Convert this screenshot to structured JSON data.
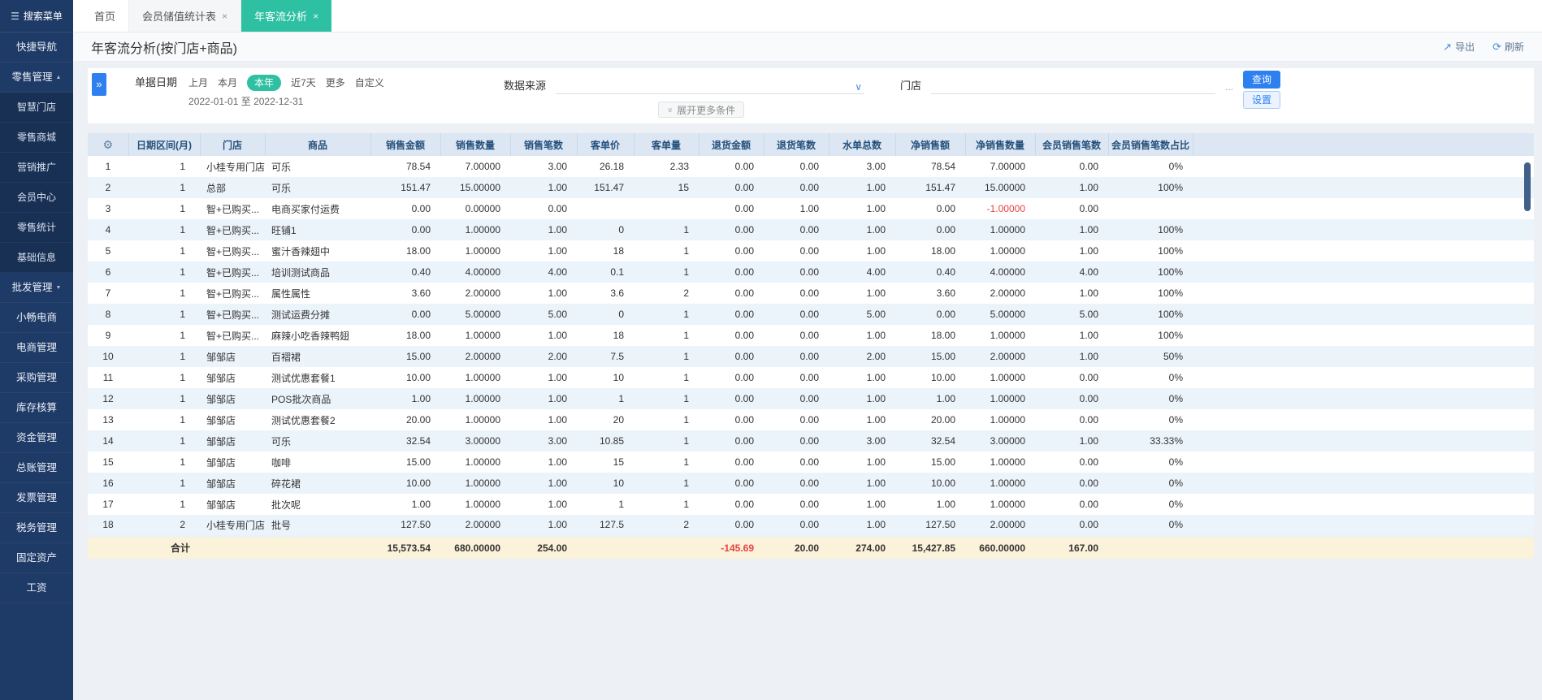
{
  "icons": {
    "menu": "☰",
    "collapse_panel": "»",
    "caret_up": "▲",
    "caret_down": "▼",
    "export": "↗",
    "refresh": "⟳",
    "dropdown_chevron": "∨",
    "expand_more": "»",
    "gear": "⚙",
    "close": "×",
    "ellipsis": "..."
  },
  "colors": {
    "accent_teal": "#2ec0a2",
    "accent_blue": "#2e80f0",
    "negative_red": "#e64242",
    "sidebar_navy": "#1e3a66",
    "table_header_blue": "#dce7f3",
    "row_stripe_blue": "#ebf3fb",
    "total_row_yellow": "#fbf2da"
  },
  "sidebar": {
    "search_label": "搜索菜单",
    "items": [
      {
        "label": "快捷导航",
        "type": "item"
      },
      {
        "label": "零售管理",
        "type": "group-open"
      },
      {
        "label": "智慧门店",
        "type": "sub"
      },
      {
        "label": "零售商城",
        "type": "sub"
      },
      {
        "label": "营销推广",
        "type": "sub"
      },
      {
        "label": "会员中心",
        "type": "sub"
      },
      {
        "label": "零售统计",
        "type": "sub"
      },
      {
        "label": "基础信息",
        "type": "sub"
      },
      {
        "label": "批发管理",
        "type": "group-closed"
      },
      {
        "label": "小畅电商",
        "type": "item"
      },
      {
        "label": "电商管理",
        "type": "item"
      },
      {
        "label": "采购管理",
        "type": "item"
      },
      {
        "label": "库存核算",
        "type": "item"
      },
      {
        "label": "资金管理",
        "type": "item"
      },
      {
        "label": "总账管理",
        "type": "item"
      },
      {
        "label": "发票管理",
        "type": "item"
      },
      {
        "label": "税务管理",
        "type": "item"
      },
      {
        "label": "固定资产",
        "type": "item"
      },
      {
        "label": "工资",
        "type": "item"
      }
    ]
  },
  "tabs": [
    {
      "label": "首页",
      "active": false,
      "closable": false
    },
    {
      "label": "会员储值统计表",
      "active": false,
      "closable": true
    },
    {
      "label": "年客流分析",
      "active": true,
      "closable": true
    }
  ],
  "page": {
    "title": "年客流分析(按门店+商品)",
    "export_label": "导出",
    "refresh_label": "刷新"
  },
  "filters": {
    "date_label": "单据日期",
    "date_buttons": [
      {
        "label": "上月",
        "active": false
      },
      {
        "label": "本月",
        "active": false
      },
      {
        "label": "本年",
        "active": true
      },
      {
        "label": "近7天",
        "active": false
      },
      {
        "label": "更多",
        "active": false
      },
      {
        "label": "自定义",
        "active": false
      }
    ],
    "date_range": "2022-01-01 至 2022-12-31",
    "source_label": "数据来源",
    "store_label": "门店",
    "query_label": "查询",
    "settings_label": "设置",
    "expand_label": "展开更多条件"
  },
  "table": {
    "columns": [
      "日期区间(月)",
      "门店",
      "商品",
      "销售金额",
      "销售数量",
      "销售笔数",
      "客单价",
      "客单量",
      "退货金额",
      "退货笔数",
      "水单总数",
      "净销售额",
      "净销售数量",
      "会员销售笔数",
      "会员销售笔数占比"
    ],
    "rows": [
      {
        "num": "1",
        "period": "1",
        "store": "小桂专用门店",
        "product": "可乐",
        "values": [
          "78.54",
          "7.00000",
          "3.00",
          "26.18",
          "2.33",
          "0.00",
          "0.00",
          "3.00",
          "78.54",
          "7.00000",
          "0.00",
          "0%"
        ]
      },
      {
        "num": "2",
        "period": "1",
        "store": "总部",
        "product": "可乐",
        "values": [
          "151.47",
          "15.00000",
          "1.00",
          "151.47",
          "15",
          "0.00",
          "0.00",
          "1.00",
          "151.47",
          "15.00000",
          "1.00",
          "100%"
        ]
      },
      {
        "num": "3",
        "period": "1",
        "store": "智+已购买...",
        "product": "电商买家付运费",
        "values": [
          "0.00",
          "0.00000",
          "0.00",
          "",
          "",
          "0.00",
          "1.00",
          "1.00",
          "0.00",
          "-1.00000",
          "0.00",
          ""
        ]
      },
      {
        "num": "4",
        "period": "1",
        "store": "智+已购买...",
        "product": "旺铺1",
        "values": [
          "0.00",
          "1.00000",
          "1.00",
          "0",
          "1",
          "0.00",
          "0.00",
          "1.00",
          "0.00",
          "1.00000",
          "1.00",
          "100%"
        ]
      },
      {
        "num": "5",
        "period": "1",
        "store": "智+已购买...",
        "product": "蜜汁香辣翅中",
        "values": [
          "18.00",
          "1.00000",
          "1.00",
          "18",
          "1",
          "0.00",
          "0.00",
          "1.00",
          "18.00",
          "1.00000",
          "1.00",
          "100%"
        ]
      },
      {
        "num": "6",
        "period": "1",
        "store": "智+已购买...",
        "product": "培训测试商品",
        "values": [
          "0.40",
          "4.00000",
          "4.00",
          "0.1",
          "1",
          "0.00",
          "0.00",
          "4.00",
          "0.40",
          "4.00000",
          "4.00",
          "100%"
        ]
      },
      {
        "num": "7",
        "period": "1",
        "store": "智+已购买...",
        "product": "属性属性",
        "values": [
          "3.60",
          "2.00000",
          "1.00",
          "3.6",
          "2",
          "0.00",
          "0.00",
          "1.00",
          "3.60",
          "2.00000",
          "1.00",
          "100%"
        ]
      },
      {
        "num": "8",
        "period": "1",
        "store": "智+已购买...",
        "product": "测试运费分摊",
        "values": [
          "0.00",
          "5.00000",
          "5.00",
          "0",
          "1",
          "0.00",
          "0.00",
          "5.00",
          "0.00",
          "5.00000",
          "5.00",
          "100%"
        ]
      },
      {
        "num": "9",
        "period": "1",
        "store": "智+已购买...",
        "product": "麻辣小吃香辣鸭翅",
        "values": [
          "18.00",
          "1.00000",
          "1.00",
          "18",
          "1",
          "0.00",
          "0.00",
          "1.00",
          "18.00",
          "1.00000",
          "1.00",
          "100%"
        ]
      },
      {
        "num": "10",
        "period": "1",
        "store": "邹邹店",
        "product": "百褶裙",
        "values": [
          "15.00",
          "2.00000",
          "2.00",
          "7.5",
          "1",
          "0.00",
          "0.00",
          "2.00",
          "15.00",
          "2.00000",
          "1.00",
          "50%"
        ]
      },
      {
        "num": "11",
        "period": "1",
        "store": "邹邹店",
        "product": "测试优惠套餐1",
        "values": [
          "10.00",
          "1.00000",
          "1.00",
          "10",
          "1",
          "0.00",
          "0.00",
          "1.00",
          "10.00",
          "1.00000",
          "0.00",
          "0%"
        ]
      },
      {
        "num": "12",
        "period": "1",
        "store": "邹邹店",
        "product": "POS批次商品",
        "values": [
          "1.00",
          "1.00000",
          "1.00",
          "1",
          "1",
          "0.00",
          "0.00",
          "1.00",
          "1.00",
          "1.00000",
          "0.00",
          "0%"
        ]
      },
      {
        "num": "13",
        "period": "1",
        "store": "邹邹店",
        "product": "测试优惠套餐2",
        "values": [
          "20.00",
          "1.00000",
          "1.00",
          "20",
          "1",
          "0.00",
          "0.00",
          "1.00",
          "20.00",
          "1.00000",
          "0.00",
          "0%"
        ]
      },
      {
        "num": "14",
        "period": "1",
        "store": "邹邹店",
        "product": "可乐",
        "values": [
          "32.54",
          "3.00000",
          "3.00",
          "10.85",
          "1",
          "0.00",
          "0.00",
          "3.00",
          "32.54",
          "3.00000",
          "1.00",
          "33.33%"
        ]
      },
      {
        "num": "15",
        "period": "1",
        "store": "邹邹店",
        "product": "咖啡",
        "values": [
          "15.00",
          "1.00000",
          "1.00",
          "15",
          "1",
          "0.00",
          "0.00",
          "1.00",
          "15.00",
          "1.00000",
          "0.00",
          "0%"
        ]
      },
      {
        "num": "16",
        "period": "1",
        "store": "邹邹店",
        "product": "碎花裙",
        "values": [
          "10.00",
          "1.00000",
          "1.00",
          "10",
          "1",
          "0.00",
          "0.00",
          "1.00",
          "10.00",
          "1.00000",
          "0.00",
          "0%"
        ]
      },
      {
        "num": "17",
        "period": "1",
        "store": "邹邹店",
        "product": "批次呢",
        "values": [
          "1.00",
          "1.00000",
          "1.00",
          "1",
          "1",
          "0.00",
          "0.00",
          "1.00",
          "1.00",
          "1.00000",
          "0.00",
          "0%"
        ]
      },
      {
        "num": "18",
        "period": "2",
        "store": "小桂专用门店",
        "product": "批号",
        "values": [
          "127.50",
          "2.00000",
          "1.00",
          "127.5",
          "2",
          "0.00",
          "0.00",
          "1.00",
          "127.50",
          "2.00000",
          "0.00",
          "0%"
        ]
      }
    ],
    "total": {
      "label": "合计",
      "values": [
        "15,573.54",
        "680.00000",
        "254.00",
        "",
        "",
        "-145.69",
        "20.00",
        "274.00",
        "15,427.85",
        "660.00000",
        "167.00",
        ""
      ]
    }
  }
}
